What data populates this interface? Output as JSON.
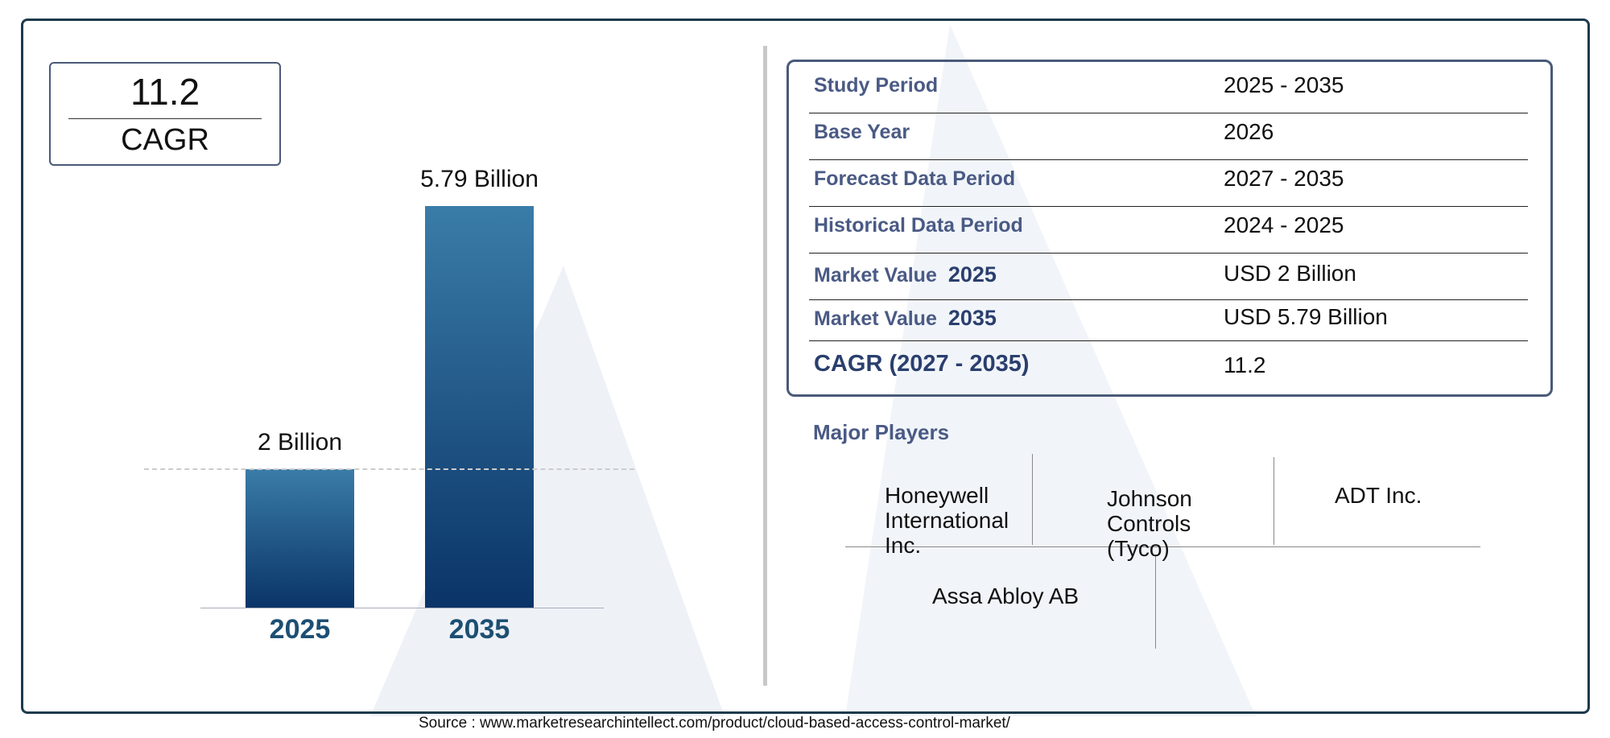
{
  "cagr_box": {
    "value": "11.2",
    "label": "CAGR"
  },
  "chart_data": {
    "type": "bar",
    "categories": [
      "2025",
      "2035"
    ],
    "values": [
      2,
      5.79
    ],
    "data_labels": [
      "2 Billion",
      "5.79 Billion"
    ],
    "ylim": [
      0,
      5.79
    ],
    "grid": false,
    "reference_line": 2,
    "colors": {
      "bar_top": "#3a7ca8",
      "bar_bottom": "#0a3468",
      "tick_label": "#1d4f73"
    }
  },
  "table": {
    "rows": [
      {
        "label": "Study Period",
        "year": "",
        "value": "2025 - 2035"
      },
      {
        "label": "Base Year",
        "year": "",
        "value": "2026"
      },
      {
        "label": "Forecast Data Period",
        "year": "",
        "value": "2027 - 2035"
      },
      {
        "label": "Historical Data Period",
        "year": "",
        "value": "2024 - 2025"
      },
      {
        "label": "Market Value",
        "year": "2025",
        "value": "USD 2 Billion"
      },
      {
        "label": "Market Value",
        "year": "2035",
        "value": "USD 5.79 Billion"
      },
      {
        "label": "CAGR (2027 - 2035)",
        "year": "",
        "value": "11.2"
      }
    ]
  },
  "major_players": {
    "title": "Major Players",
    "players": [
      "Honeywell International Inc.",
      "Johnson Controls (Tyco)",
      "ADT Inc.",
      "Assa Abloy AB"
    ]
  },
  "source": "Source : www.marketresearchintellect.com/product/cloud-based-access-control-market/"
}
